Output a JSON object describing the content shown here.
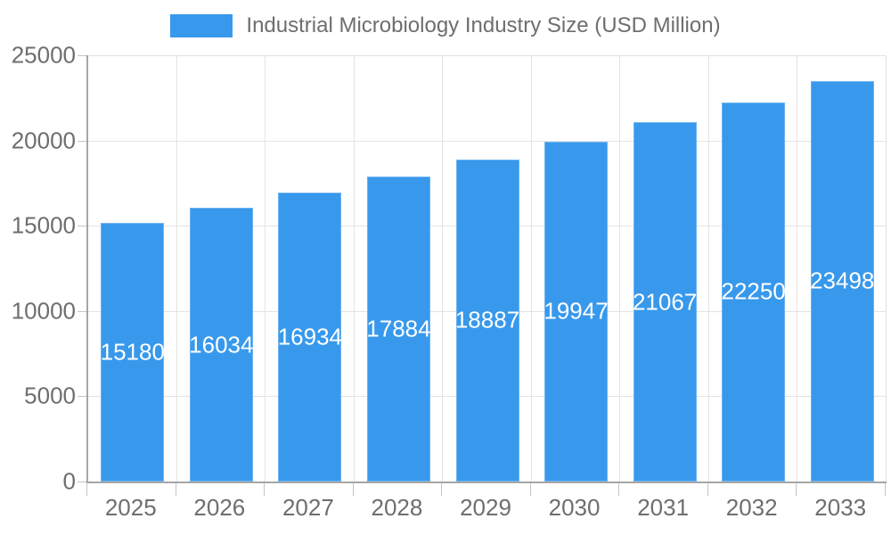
{
  "chart_data": {
    "type": "bar",
    "title": "Industrial Microbiology Industry Size (USD Million)",
    "categories": [
      "2025",
      "2026",
      "2027",
      "2028",
      "2029",
      "2030",
      "2031",
      "2032",
      "2033"
    ],
    "series": [
      {
        "name": "Industrial Microbiology Industry Size (USD Million)",
        "values": [
          15180,
          16034,
          16934,
          17884,
          18887,
          19947,
          21067,
          22250,
          23498
        ]
      }
    ],
    "xlabel": "",
    "ylabel": "",
    "ylim": [
      0,
      25000
    ],
    "y_ticks": [
      0,
      5000,
      10000,
      15000,
      20000,
      25000
    ],
    "grid": true,
    "legend_position": "top",
    "bar_labels_inside": true
  },
  "legend": {
    "label": "Industrial Microbiology Industry Size (USD Million)"
  },
  "colors": {
    "bar_fill": "#3899ec",
    "bar_border": "#6cb2f0",
    "bar_label_text": "#ffffff",
    "axis_line": "#a6a6a6",
    "gridline": "#e3e3e3",
    "tick_mark": "#c4c4c4",
    "axis_text": "#6e6e6e",
    "background": "#ffffff"
  }
}
